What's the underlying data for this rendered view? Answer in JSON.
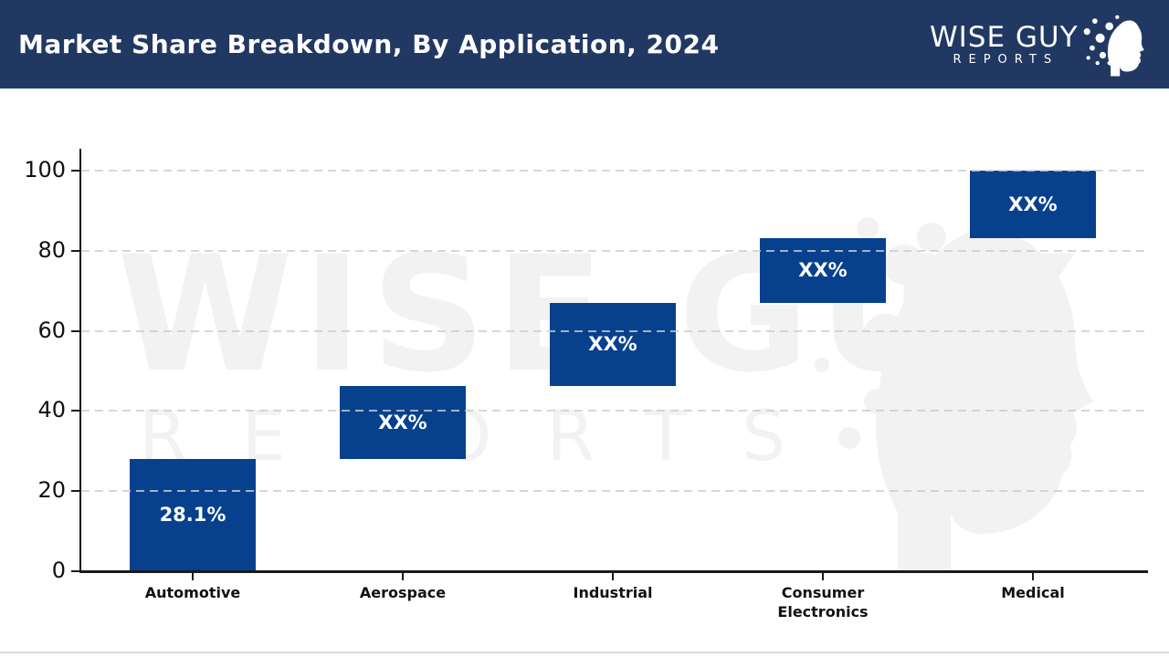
{
  "header": {
    "title": "Market Share Breakdown, By Application, 2024",
    "logo": {
      "line1": "WISE GUY",
      "line2": "REPORTS"
    }
  },
  "watermark": {
    "line1": "WISE GUY",
    "line2": "REPORTS"
  },
  "colors": {
    "header_bg": "#213862",
    "bar": "#07418e",
    "bar_label": "#ffffff",
    "grid": "#d8d8d8",
    "axis": "#1a1a1a",
    "watermark": "#f2f2f2"
  },
  "chart_data": {
    "type": "bar",
    "subtype": "waterfall",
    "title": "Market Share Breakdown, By Application, 2024",
    "categories": [
      "Automotive",
      "Aerospace",
      "Industrial",
      "Consumer Electronics",
      "Medical"
    ],
    "segments": [
      {
        "category": "Automotive",
        "start": 0,
        "end": 28.1,
        "value": 28.1,
        "label": "28.1%"
      },
      {
        "category": "Aerospace",
        "start": 28.1,
        "end": 46.3,
        "value": 18.2,
        "label": "XX%"
      },
      {
        "category": "Industrial",
        "start": 46.3,
        "end": 67.0,
        "value": 20.7,
        "label": "XX%"
      },
      {
        "category": "Consumer Electronics",
        "start": 67.0,
        "end": 83.2,
        "value": 16.2,
        "label": "XX%"
      },
      {
        "category": "Medical",
        "start": 83.2,
        "end": 100.0,
        "value": 16.8,
        "label": "XX%"
      }
    ],
    "ylim": [
      0,
      100
    ],
    "yticks": [
      0,
      20,
      40,
      60,
      80,
      100
    ],
    "xlabel": "",
    "ylabel": "",
    "grid": "dashed-horizontal-over-bars",
    "legend": null
  }
}
